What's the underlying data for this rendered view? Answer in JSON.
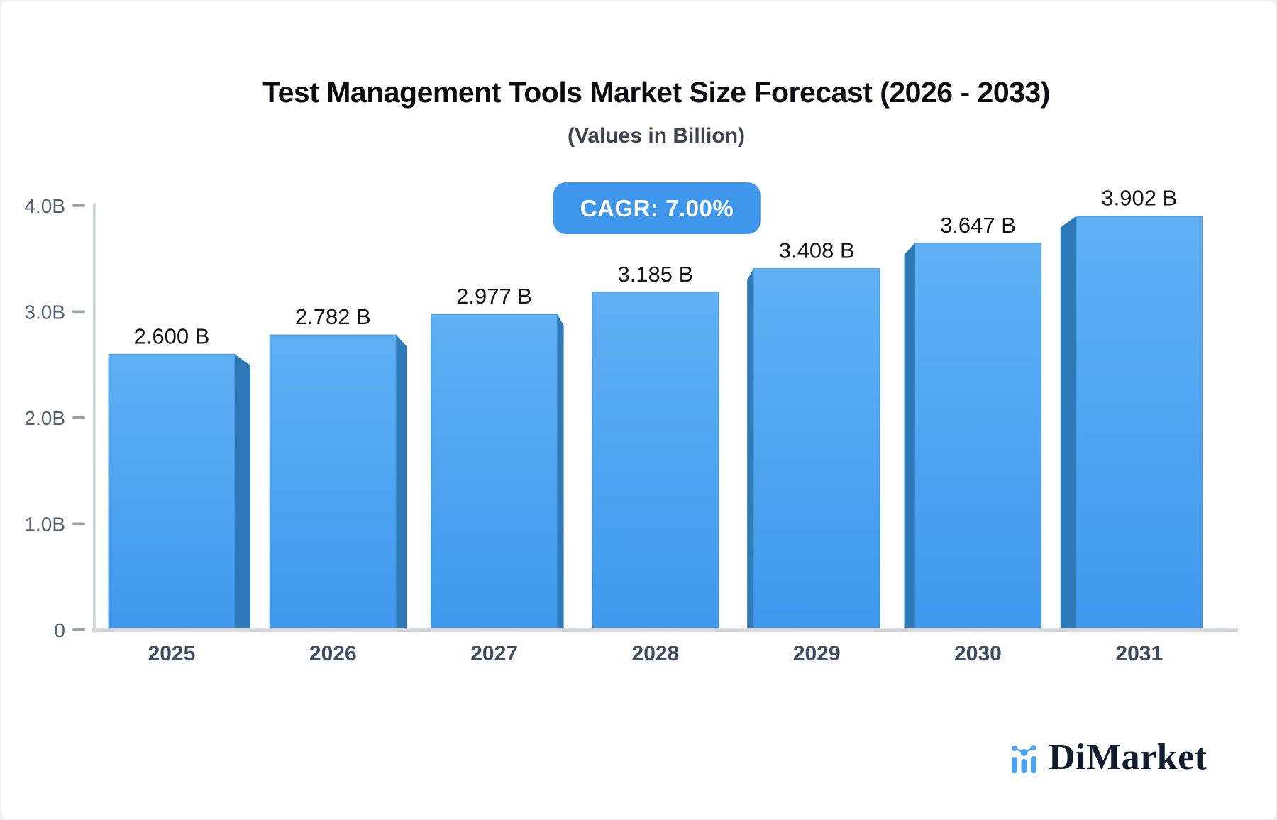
{
  "header": {
    "title": "Test Management Tools Market Size Forecast (2026 - 2033)",
    "subtitle": "(Values in Billion)"
  },
  "badge": {
    "label": "CAGR: 7.00%"
  },
  "logo": {
    "text": "DiMarket",
    "icon": "mini-bar-line-chart-icon"
  },
  "colors": {
    "bar_top": "#5fb0f3",
    "bar_bottom": "#3e98ee",
    "bar_stroke": "#2f81c9",
    "bar_side": "#2e7ab8",
    "badge_bg": "#3f97ed",
    "axis_line": "#d5d8dc",
    "tick": "#9aa2ab",
    "y_label": "#515e6d",
    "x_label": "#3e4c61",
    "value_label": "#141519",
    "logo_blue": "#4ba3f6",
    "logo_text": "#111c2e"
  },
  "chart_data": {
    "type": "bar",
    "title": "Test Management Tools Market Size Forecast (2026 - 2033)",
    "subtitle": "(Values in Billion)",
    "cagr_percent": 7.0,
    "categories": [
      "2025",
      "2026",
      "2027",
      "2028",
      "2029",
      "2030",
      "2031"
    ],
    "values": [
      2.6,
      2.782,
      2.977,
      3.185,
      3.408,
      3.647,
      3.902
    ],
    "value_labels": [
      "2.600 B",
      "2.782 B",
      "2.977 B",
      "3.185 B",
      "3.408 B",
      "3.647 B",
      "3.902 B"
    ],
    "xlabel": "",
    "ylabel": "",
    "unit": "Billion",
    "ylim": [
      0,
      4.0
    ],
    "yticks": [
      {
        "value": 0,
        "label": "0"
      },
      {
        "value": 1.0,
        "label": "1.0B"
      },
      {
        "value": 2.0,
        "label": "2.0B"
      },
      {
        "value": 3.0,
        "label": "3.0B"
      },
      {
        "value": 4.0,
        "label": "4.0B"
      }
    ],
    "grid": false,
    "legend": false
  }
}
